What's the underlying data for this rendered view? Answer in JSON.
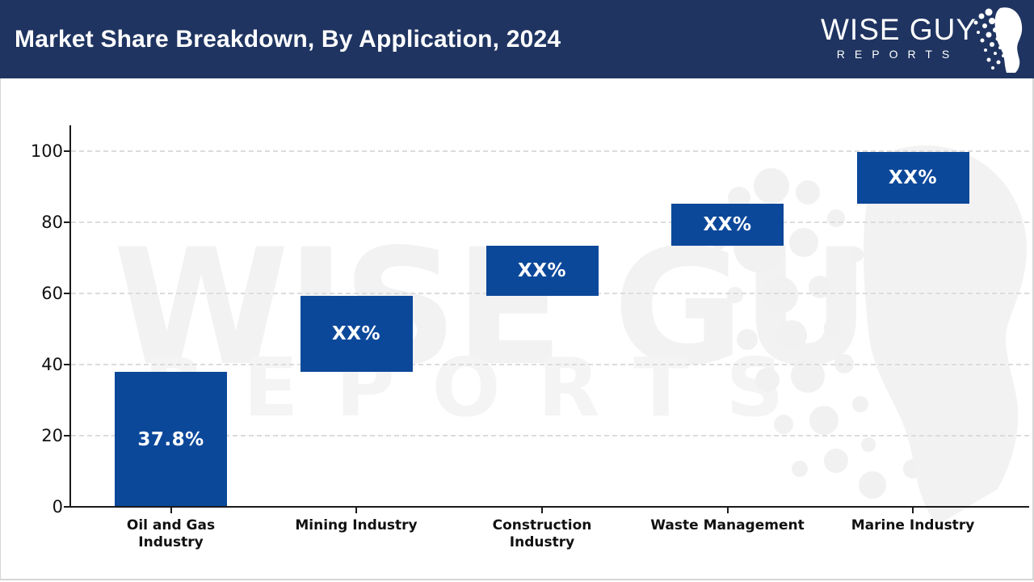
{
  "header": {
    "title": "Market Share Breakdown, By Application, 2024",
    "logo": {
      "line1": "WISE GUY",
      "line2": "REPORTS"
    }
  },
  "watermark": {
    "line1": "WISE GUY",
    "line2": "REPORTS"
  },
  "colors": {
    "header_navy": "#1f3461",
    "bar_blue": "#0c489a",
    "gridline_gray": "#dcdcdc",
    "watermark_gray": "#f2f2f2"
  },
  "chart_data": {
    "type": "bar",
    "variant": "waterfall",
    "title": "Market Share Breakdown, By Application, 2024",
    "xlabel": "",
    "ylabel": "",
    "ylim": [
      0,
      100
    ],
    "y_ticks": [
      0,
      20,
      40,
      60,
      80,
      100
    ],
    "grid": "horizontal-dashed",
    "legend": false,
    "categories": [
      "Oil and Gas Industry",
      "Mining Industry",
      "Construction Industry",
      "Waste Management",
      "Marine Industry"
    ],
    "category_lines": [
      [
        "Oil and Gas",
        "Industry"
      ],
      [
        "Mining Industry"
      ],
      [
        "Construction",
        "Industry"
      ],
      [
        "Waste Management"
      ],
      [
        "Marine Industry"
      ]
    ],
    "segments": [
      {
        "category": "Oil and Gas Industry",
        "start": 0,
        "end": 37.8,
        "label": "37.8%"
      },
      {
        "category": "Mining Industry",
        "start": 37.8,
        "end": 59.3,
        "label": "XX%"
      },
      {
        "category": "Construction Industry",
        "start": 59.3,
        "end": 73.3,
        "label": "XX%"
      },
      {
        "category": "Waste Management",
        "start": 73.3,
        "end": 85.1,
        "label": "XX%"
      },
      {
        "category": "Marine Industry",
        "start": 85.1,
        "end": 99.7,
        "label": "XX%"
      }
    ]
  }
}
